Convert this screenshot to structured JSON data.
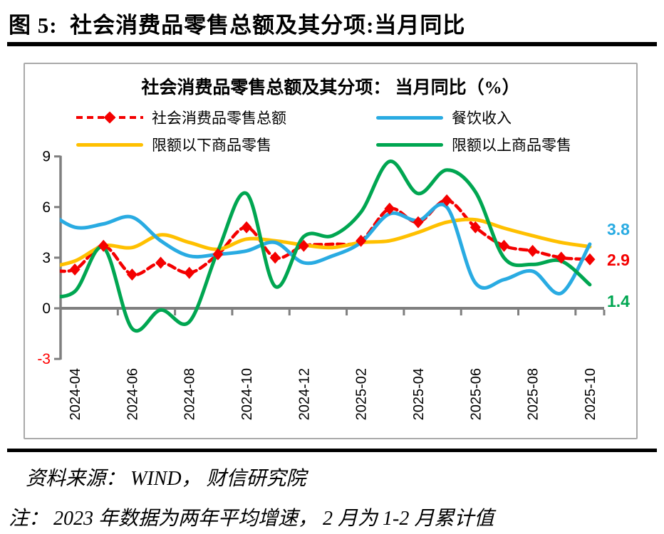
{
  "page": {
    "figure_title": "图 5:  社会消费品零售总额及其分项:当月同比",
    "source_line": "资料来源： WIND， 财信研究院",
    "note_line": "注： 2023 年数据为两年平均增速， 2 月为 1-2 月累计值"
  },
  "chart_data": {
    "type": "line",
    "title": "社会消费品零售总额及其分项： 当月同比（%）",
    "unit": "%",
    "x": [
      "2024-04",
      "2024-05",
      "2024-06",
      "2024-07",
      "2024-08",
      "2024-09",
      "2024-10",
      "2024-11",
      "2024-12",
      "2025-01",
      "2025-02",
      "2025-03",
      "2025-04",
      "2025-05",
      "2025-06",
      "2025-07",
      "2025-08",
      "2025-09",
      "2025-10"
    ],
    "x_tick_labels": [
      "2024-04",
      "2024-06",
      "2024-08",
      "2024-10",
      "2024-12",
      "2025-02",
      "2025-04",
      "2025-06",
      "2025-08",
      "2025-10"
    ],
    "ylim": [
      -3,
      9
    ],
    "y_ticks": [
      9,
      6,
      3,
      0,
      -3
    ],
    "grid": false,
    "legend_position": "top",
    "smooth_lines": true,
    "axis_color": "#7f7f7f",
    "y_tick_label_color": "#000000",
    "y_tick_negative_color": "#ff0000",
    "x_tick_label_color": "#000000",
    "series": [
      {
        "key": "total-retail",
        "name": "社会消费品零售总额",
        "color": "#f40000",
        "line_style": "dashed",
        "marker": "diamond",
        "values": [
          2.3,
          3.7,
          2.0,
          2.7,
          2.1,
          3.2,
          4.8,
          3.0,
          3.7,
          3.8,
          4.0,
          5.9,
          5.1,
          6.4,
          4.8,
          3.7,
          3.4,
          3.0,
          2.9
        ],
        "marker_skip_months": [
          "2025-01"
        ]
      },
      {
        "key": "catering",
        "name": "餐饮收入",
        "color": "#29abe2",
        "line_style": "solid",
        "marker": "none",
        "values": [
          4.8,
          5.0,
          5.4,
          4.0,
          3.1,
          3.2,
          3.4,
          3.9,
          2.7,
          3.1,
          3.9,
          5.6,
          5.2,
          6.0,
          1.5,
          1.7,
          2.2,
          0.9,
          3.8
        ]
      },
      {
        "key": "below-quota",
        "name": "限额以下商品零售",
        "color": "#ffc000",
        "line_style": "solid",
        "marker": "none",
        "values": [
          2.8,
          3.7,
          3.6,
          4.35,
          3.9,
          3.5,
          4.1,
          4.0,
          3.75,
          3.6,
          3.9,
          4.0,
          4.5,
          5.1,
          5.25,
          4.75,
          4.3,
          3.9,
          3.65
        ]
      },
      {
        "key": "above-quota",
        "name": "限额以上商品零售",
        "color": "#00a651",
        "line_style": "solid",
        "marker": "none",
        "values": [
          1.0,
          3.6,
          -1.2,
          -0.1,
          -0.8,
          3.4,
          6.8,
          1.3,
          4.25,
          4.3,
          5.7,
          8.7,
          6.8,
          8.2,
          6.9,
          3.0,
          2.6,
          2.8,
          1.4
        ]
      }
    ],
    "clipped_lead_point": {
      "month": "2024-03",
      "values": {
        "total-retail": 2.3,
        "catering": 5.8,
        "below-quota": 2.4,
        "above-quota": 0.7
      }
    },
    "end_labels": [
      {
        "text": "3.8",
        "series": "catering",
        "color": "#29abe2"
      },
      {
        "text": "2.9",
        "series": "total-retail",
        "color": "#f40000"
      },
      {
        "text": "1.4",
        "series": "above-quota",
        "color": "#00a651"
      }
    ]
  }
}
